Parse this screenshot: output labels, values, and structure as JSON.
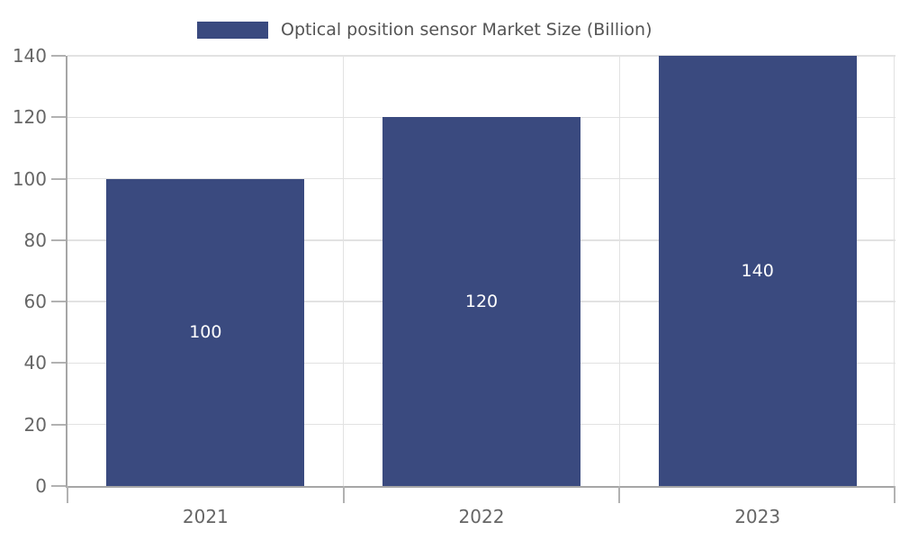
{
  "legend": {
    "label": "Optical position sensor Market Size (Billion)",
    "swatch_color": "#3a4a7f"
  },
  "chart_data": {
    "type": "bar",
    "title": "",
    "xlabel": "",
    "ylabel": "",
    "categories": [
      "2021",
      "2022",
      "2023"
    ],
    "values": [
      100,
      120,
      140
    ],
    "series_name": "Optical position sensor Market Size (Billion)",
    "ylim": [
      0,
      140
    ],
    "yticks": [
      0,
      20,
      40,
      60,
      80,
      100,
      120,
      140
    ],
    "grid": true,
    "legend_position": "top-center",
    "bar_color": "#3a4a7f",
    "bar_label_color": "#ffffff",
    "bar_labels": [
      "100",
      "120",
      "140"
    ]
  },
  "colors": {
    "background": "#ffffff",
    "grid": "#e2e2e2",
    "axis_spine": "#a6a6a6",
    "tick": "#b2b2b2",
    "tick_label": "#666666",
    "legend_text": "#545454"
  }
}
